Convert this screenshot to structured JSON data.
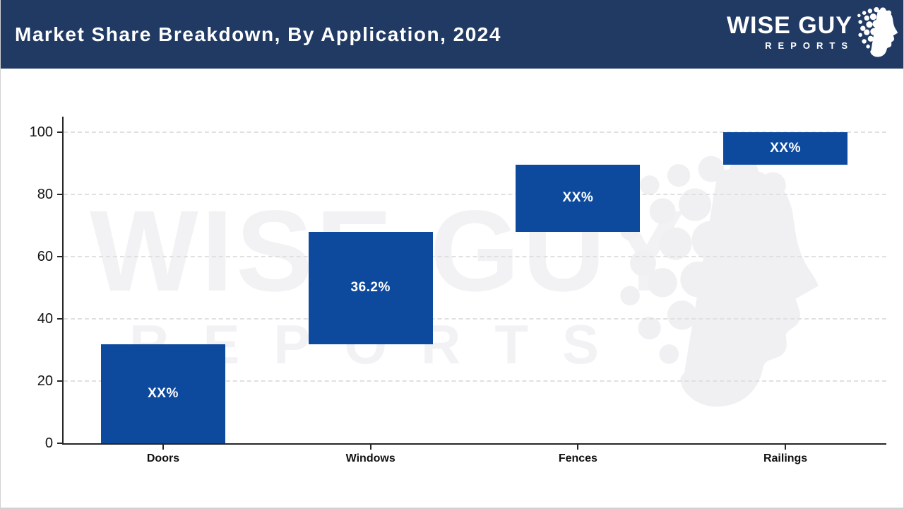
{
  "header": {
    "title": "Market Share Breakdown, By Application, 2024",
    "bg_color": "#203a64",
    "logo": {
      "line1": "WISE GUY",
      "line2": "REPORTS",
      "face_icon": "face-profile-dots"
    }
  },
  "watermark": {
    "line1": "WISE GUY",
    "line2": "REPORTS",
    "face_icon": "face-profile-dots"
  },
  "chart_data": {
    "type": "bar",
    "subtype": "waterfall",
    "title": "Market Share Breakdown, By Application, 2024",
    "categories": [
      "Doors",
      "Windows",
      "Fences",
      "Railings"
    ],
    "segments": [
      {
        "category": "Doors",
        "start": 0,
        "end": 31.8,
        "value": 31.8,
        "label": "XX%"
      },
      {
        "category": "Windows",
        "start": 31.8,
        "end": 68.0,
        "value": 36.2,
        "label": "36.2%"
      },
      {
        "category": "Fences",
        "start": 68.0,
        "end": 89.5,
        "value": 21.5,
        "label": "XX%"
      },
      {
        "category": "Railings",
        "start": 89.5,
        "end": 100,
        "value": 10.5,
        "label": "XX%"
      }
    ],
    "yticks": [
      0,
      20,
      40,
      60,
      80,
      100
    ],
    "ylim": [
      0,
      105
    ],
    "xlabel": "",
    "ylabel": "",
    "grid": "horizontal-dashed",
    "legend": "none",
    "bar_color": "#0d4a9e",
    "bar_label_color": "#ffffff",
    "axis_color": "#262626",
    "gridline_color": "#e0e0e0"
  }
}
